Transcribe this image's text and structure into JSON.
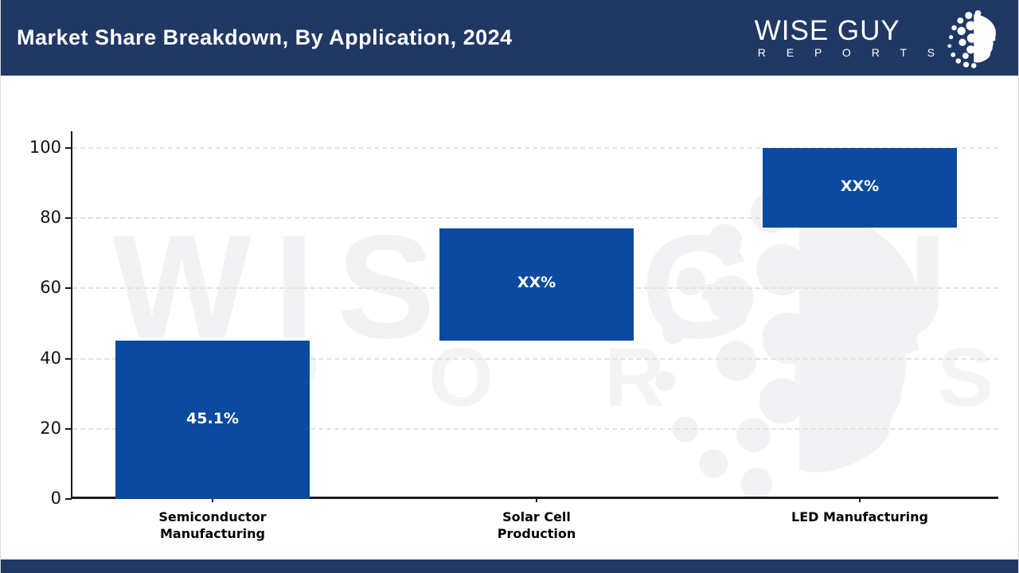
{
  "header": {
    "title": "Market Share Breakdown, By Application, 2024",
    "logo": {
      "name": "Wise Guy Reports logo",
      "line1": "WISE GUY",
      "line2": "R E P O R T S"
    }
  },
  "watermark": {
    "line1": "WISE G U Y",
    "line2": "P O R T S"
  },
  "colors": {
    "header_bg": "#203864",
    "footer_bg": "#203864",
    "bar": "#0B4A9F",
    "grid": "#e2e2e2",
    "axis": "#1a1a1a"
  },
  "chart_data": {
    "type": "bar",
    "variant": "floating-waterfall",
    "title": "Market Share Breakdown, By Application, 2024",
    "xlabel": "",
    "ylabel": "",
    "ylim": [
      0,
      100
    ],
    "yticks": [
      0,
      20,
      40,
      60,
      80,
      100
    ],
    "grid": "horizontal-dashed",
    "legend": "none",
    "bar_color": "#0B4A9F",
    "bars": [
      {
        "category_lines": [
          "Semiconductor",
          "Manufacturing"
        ],
        "start": 0,
        "end": 45.1,
        "label": "45.1%"
      },
      {
        "category_lines": [
          "Solar Cell",
          "Production"
        ],
        "start": 45.1,
        "end": 77.2,
        "label": "XX%"
      },
      {
        "category_lines": [
          "LED Manufacturing"
        ],
        "start": 77.4,
        "end": 100,
        "label": "XX%"
      }
    ]
  }
}
